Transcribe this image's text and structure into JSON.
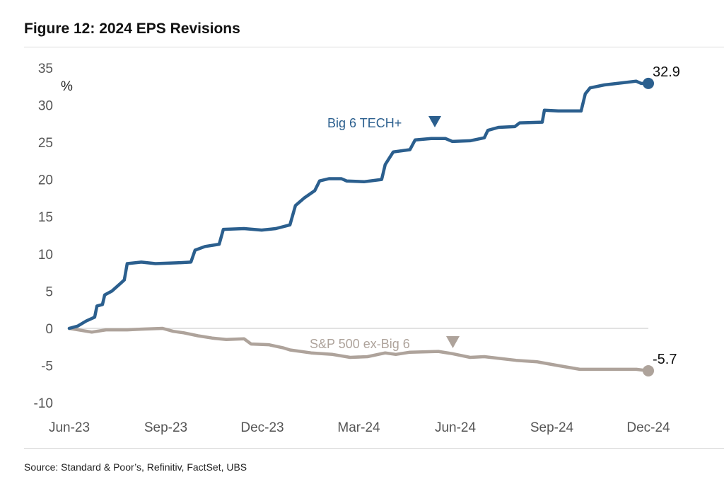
{
  "chart_data": {
    "type": "line",
    "title": "Figure 12: 2024 EPS Revisions",
    "ylabel": "%",
    "xlabel": "",
    "ylim": [
      -10,
      35
    ],
    "yticks": [
      35,
      30,
      25,
      20,
      15,
      10,
      5,
      0,
      -5,
      -10
    ],
    "xticks": [
      "Jun-23",
      "Sep-23",
      "Dec-23",
      "Mar-24",
      "Jun-24",
      "Sep-24",
      "Dec-24"
    ],
    "x_unit": "months since Jun-23",
    "xlim": [
      0,
      18
    ],
    "grid": false,
    "zero_line": true,
    "source": "Source: Standard & Poor’s, Refinitiv, FactSet, UBS",
    "series": [
      {
        "name": "Big 6 TECH+",
        "color": "#2b5f8e",
        "end_value": 32.9,
        "end_label": "32.9",
        "points": [
          [
            0.0,
            0.0
          ],
          [
            0.26,
            0.3
          ],
          [
            0.53,
            1.0
          ],
          [
            0.79,
            1.5
          ],
          [
            0.86,
            3.0
          ],
          [
            1.03,
            3.2
          ],
          [
            1.1,
            4.5
          ],
          [
            1.32,
            5.0
          ],
          [
            1.58,
            6.0
          ],
          [
            1.71,
            6.5
          ],
          [
            1.8,
            8.7
          ],
          [
            2.24,
            8.9
          ],
          [
            2.68,
            8.7
          ],
          [
            3.34,
            8.8
          ],
          [
            3.78,
            8.9
          ],
          [
            3.91,
            10.5
          ],
          [
            4.22,
            11.0
          ],
          [
            4.66,
            11.3
          ],
          [
            4.79,
            13.3
          ],
          [
            5.43,
            13.4
          ],
          [
            5.98,
            13.2
          ],
          [
            6.42,
            13.4
          ],
          [
            6.86,
            13.9
          ],
          [
            7.03,
            16.5
          ],
          [
            7.3,
            17.5
          ],
          [
            7.63,
            18.5
          ],
          [
            7.78,
            19.8
          ],
          [
            8.07,
            20.1
          ],
          [
            8.46,
            20.1
          ],
          [
            8.62,
            19.8
          ],
          [
            9.16,
            19.7
          ],
          [
            9.71,
            20.0
          ],
          [
            9.82,
            22.0
          ],
          [
            10.07,
            23.7
          ],
          [
            10.59,
            24.0
          ],
          [
            10.75,
            25.3
          ],
          [
            11.25,
            25.5
          ],
          [
            11.69,
            25.5
          ],
          [
            11.91,
            25.1
          ],
          [
            12.46,
            25.2
          ],
          [
            12.9,
            25.6
          ],
          [
            13.01,
            26.6
          ],
          [
            13.34,
            27.0
          ],
          [
            13.85,
            27.1
          ],
          [
            14.0,
            27.6
          ],
          [
            14.7,
            27.7
          ],
          [
            14.77,
            29.3
          ],
          [
            15.2,
            29.2
          ],
          [
            15.91,
            29.2
          ],
          [
            16.04,
            31.5
          ],
          [
            16.19,
            32.3
          ],
          [
            16.63,
            32.7
          ],
          [
            17.62,
            33.2
          ],
          [
            17.78,
            32.9
          ],
          [
            18.0,
            32.9
          ]
        ]
      },
      {
        "name": "S&P 500 ex-Big 6",
        "color": "#aea39b",
        "end_value": -5.7,
        "end_label": "-5.7",
        "points": [
          [
            0.0,
            0.0
          ],
          [
            0.7,
            -0.5
          ],
          [
            1.14,
            -0.2
          ],
          [
            1.8,
            -0.2
          ],
          [
            2.24,
            -0.1
          ],
          [
            2.9,
            0.0
          ],
          [
            3.23,
            -0.4
          ],
          [
            3.56,
            -0.6
          ],
          [
            4.0,
            -1.0
          ],
          [
            4.44,
            -1.3
          ],
          [
            4.88,
            -1.5
          ],
          [
            5.43,
            -1.4
          ],
          [
            5.65,
            -2.1
          ],
          [
            6.2,
            -2.2
          ],
          [
            6.64,
            -2.6
          ],
          [
            6.86,
            -2.9
          ],
          [
            7.52,
            -3.3
          ],
          [
            8.18,
            -3.5
          ],
          [
            8.73,
            -3.9
          ],
          [
            9.27,
            -3.8
          ],
          [
            9.82,
            -3.3
          ],
          [
            10.15,
            -3.5
          ],
          [
            10.59,
            -3.2
          ],
          [
            11.47,
            -3.1
          ],
          [
            11.91,
            -3.4
          ],
          [
            12.46,
            -3.9
          ],
          [
            12.9,
            -3.8
          ],
          [
            13.89,
            -4.3
          ],
          [
            14.55,
            -4.5
          ],
          [
            15.2,
            -5.0
          ],
          [
            15.87,
            -5.5
          ],
          [
            16.96,
            -5.5
          ],
          [
            17.63,
            -5.5
          ],
          [
            18.0,
            -5.7
          ]
        ]
      }
    ]
  }
}
